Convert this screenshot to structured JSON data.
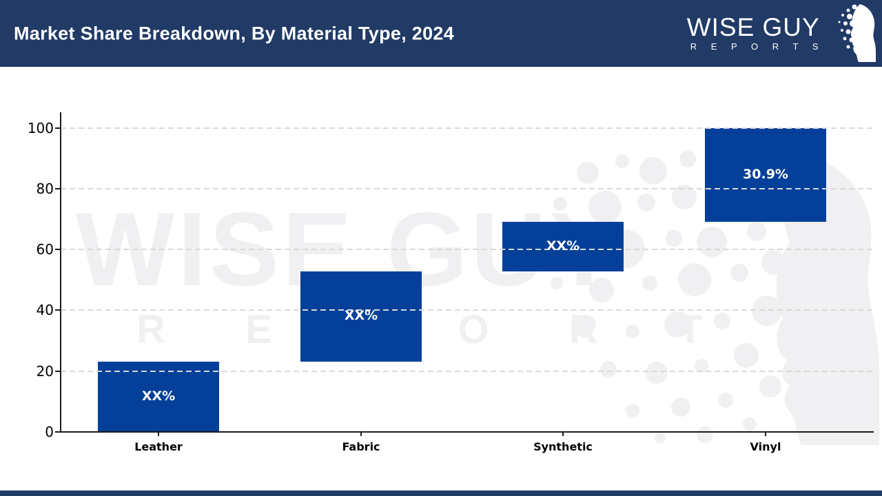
{
  "header": {
    "title": "Market Share Breakdown, By Material Type, 2024",
    "bg_color": "#213a66",
    "logo": {
      "name": "Wise Guy Reports",
      "line1": "WISE GUY",
      "line2": "R E P O R T S"
    }
  },
  "watermark": {
    "line1": "WISE GUY",
    "line2": "R E P O R T S",
    "color": "#f0f0f2"
  },
  "footer": {
    "bg_color": "#213a66"
  },
  "chart_data": {
    "type": "bar",
    "subtype": "floating-segment-bars",
    "title": "Market Share Breakdown, By Material Type, 2024",
    "categories": [
      "Leather",
      "Fabric",
      "Synthetic",
      "Vinyl"
    ],
    "bars": [
      {
        "category": "Leather",
        "from": 0,
        "to": 23.2,
        "label": "XX%"
      },
      {
        "category": "Fabric",
        "from": 23.2,
        "to": 52.8,
        "label": "XX%"
      },
      {
        "category": "Synthetic",
        "from": 52.8,
        "to": 69.1,
        "label": "XX%"
      },
      {
        "category": "Vinyl",
        "from": 69.1,
        "to": 100,
        "label": "30.9%"
      }
    ],
    "xlabel": "",
    "ylabel": "",
    "ylim": [
      0,
      100
    ],
    "yticks": [
      0,
      20,
      40,
      60,
      80,
      100
    ],
    "grid": "horizontal dashed, drawn over bars",
    "legend": "none",
    "bar_color": "#04409a",
    "bar_label_color": "#ffffff",
    "axis_color": "#1a1a1a",
    "gridline_color": "#d9d9d9"
  }
}
